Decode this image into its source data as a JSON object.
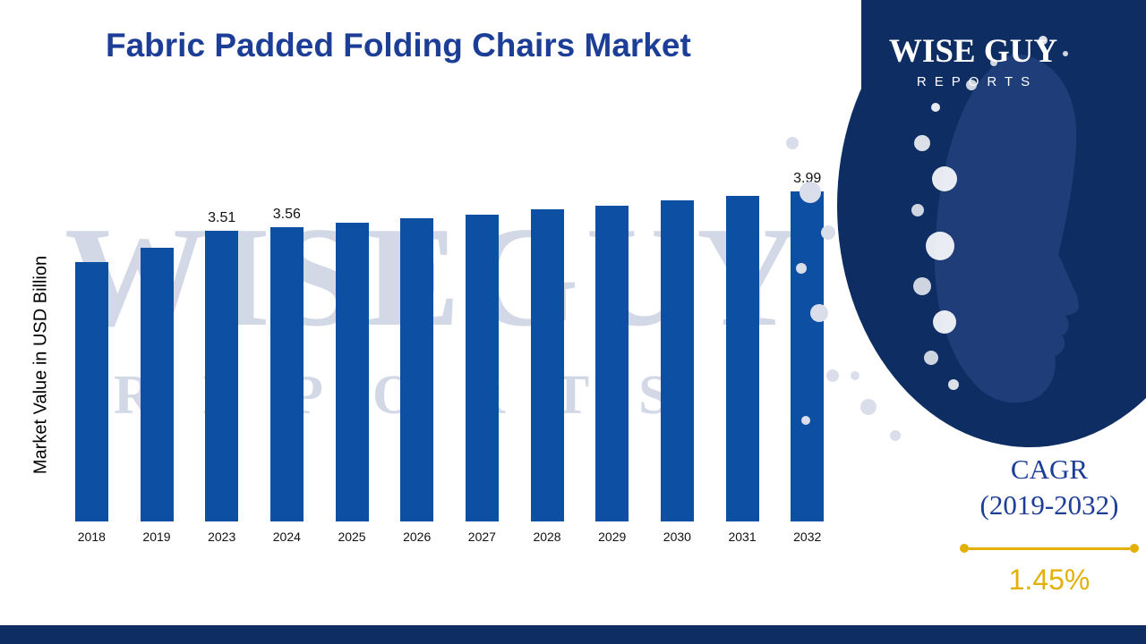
{
  "title": "Fabric Padded Folding Chairs Market",
  "watermark": {
    "line1": "WISEGUY",
    "line2": "REPORTS"
  },
  "logo": {
    "line1": "WISE GUY",
    "line2": "REPORTS"
  },
  "cagr": {
    "title": "CAGR",
    "range": "(2019-2032)",
    "value": "1.45%"
  },
  "colors": {
    "bar_blue": "#0d4fa3",
    "navy": "#0e2d63",
    "gold": "#e3b007",
    "title_blue": "#1c3e96",
    "watermark_gray": "#d2d8e5"
  },
  "chart_data": {
    "type": "bar",
    "title": "Fabric Padded Folding Chairs Market",
    "xlabel": "",
    "ylabel": "Market Value in USD Billion",
    "ylim": [
      0,
      4.4
    ],
    "grid": false,
    "legend": false,
    "bar_color": "#0d4fa3",
    "categories": [
      "2018",
      "2019",
      "2023",
      "2024",
      "2025",
      "2026",
      "2027",
      "2028",
      "2029",
      "2030",
      "2031",
      "2032"
    ],
    "values": [
      3.14,
      3.31,
      3.51,
      3.56,
      3.61,
      3.66,
      3.71,
      3.77,
      3.82,
      3.88,
      3.93,
      3.99
    ],
    "data_labels": {
      "2023": "3.51",
      "2024": "3.56",
      "2032": "3.99"
    }
  }
}
